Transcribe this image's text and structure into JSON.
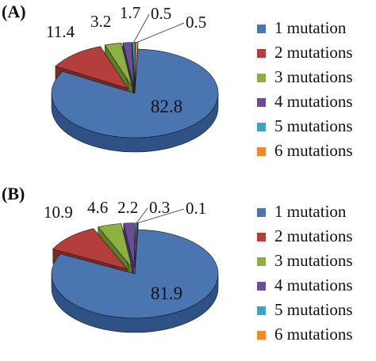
{
  "chart_data": [
    {
      "type": "pie",
      "panel_label": "(A)",
      "categories": [
        "1 mutation",
        "2 mutations",
        "3 mutations",
        "4 mutations",
        "5 mutations",
        "6 mutations"
      ],
      "values": [
        82.8,
        11.4,
        3.2,
        1.7,
        0.5,
        0.5
      ],
      "value_labels": [
        "82.8",
        "11.4",
        "3.2",
        "1.7",
        "0.5",
        "0.5"
      ],
      "exploded": true,
      "three_d": true
    },
    {
      "type": "pie",
      "panel_label": "(B)",
      "categories": [
        "1 mutation",
        "2 mutations",
        "3 mutations",
        "4 mutations",
        "5 mutations",
        "6 mutations"
      ],
      "values": [
        81.9,
        10.9,
        4.6,
        2.2,
        0.3,
        0.1
      ],
      "value_labels": [
        "81.9",
        "10.9",
        "4.6",
        "2.2",
        "0.3",
        "0.1"
      ],
      "exploded": true,
      "three_d": true
    }
  ],
  "legend_placement": "right",
  "colors": [
    "#4A75B0",
    "#B43E3C",
    "#8DB141",
    "#6B4D96",
    "#3CA5C0",
    "#F0892A"
  ],
  "side_colors": [
    "#2E5286",
    "#7E2826",
    "#5F7D27",
    "#47306A",
    "#237A90",
    "#B5611A"
  ]
}
